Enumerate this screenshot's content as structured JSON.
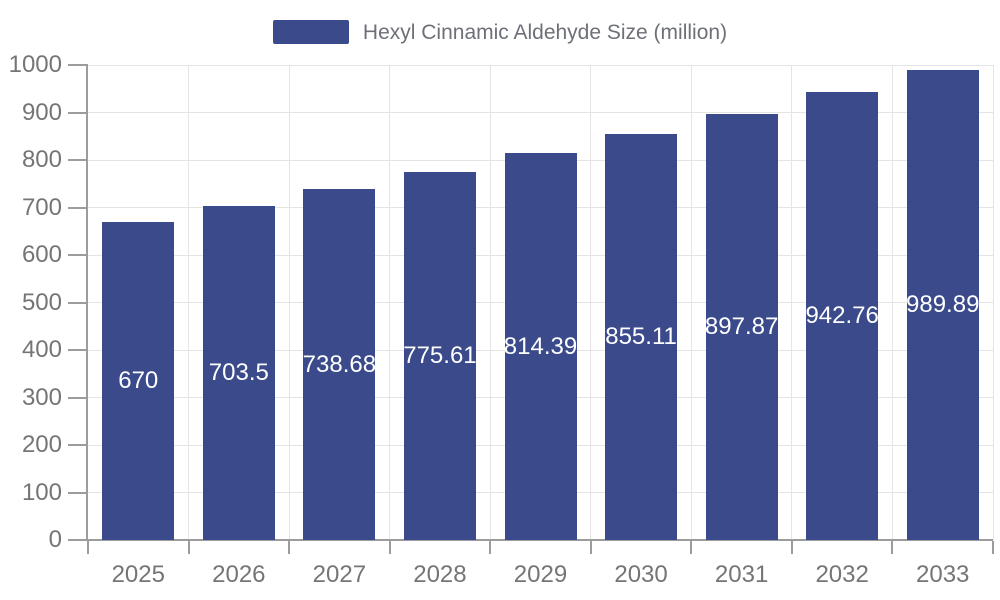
{
  "chart_data": {
    "type": "bar",
    "title": "Hexyl Cinnamic Aldehyde Size (million)",
    "legend": [
      "Hexyl Cinnamic Aldehyde Size (million)"
    ],
    "legend_position": "top-center",
    "categories": [
      "2025",
      "2026",
      "2027",
      "2028",
      "2029",
      "2030",
      "2031",
      "2032",
      "2033"
    ],
    "series": [
      {
        "name": "Hexyl Cinnamic Aldehyde Size (million)",
        "values": [
          670,
          703.5,
          738.68,
          775.61,
          814.39,
          855.11,
          897.87,
          942.76,
          989.89
        ]
      }
    ],
    "bar_labels": [
      "670",
      "703.5",
      "738.68",
      "775.61",
      "814.39",
      "855.11",
      "897.87",
      "942.76",
      "989.89"
    ],
    "xlabel": "",
    "ylabel": "",
    "ylim": [
      0,
      1000
    ],
    "ytick_step": 100,
    "yticks": [
      0,
      100,
      200,
      300,
      400,
      500,
      600,
      700,
      800,
      900,
      1000
    ],
    "grid": "horizontal and vertical light gridlines"
  },
  "colors": {
    "bar": "#3A4A8B",
    "bar_label": "#FFFFFF",
    "axis_line": "#9C9C9C",
    "grid_line": "#E4E4E4",
    "tick_label": "#757575",
    "legend_text": "#6E7079",
    "background": "#FFFFFF"
  }
}
